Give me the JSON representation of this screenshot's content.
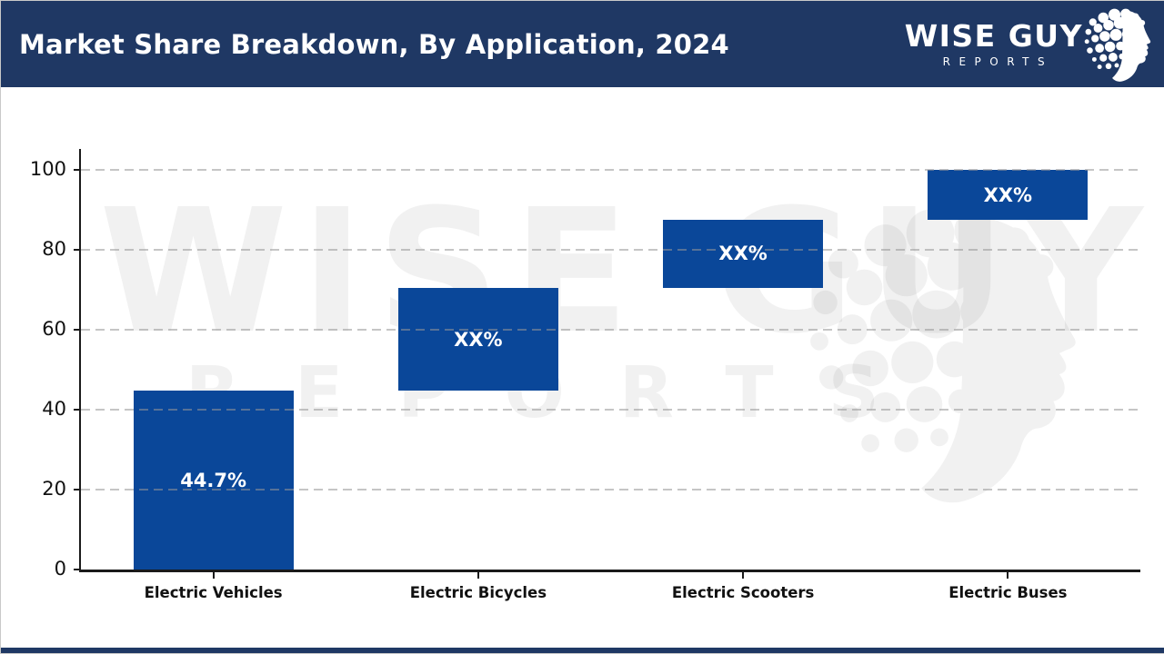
{
  "header": {
    "title": "Market Share Breakdown, By Application, 2024",
    "logo": {
      "line1": "WISE GUY",
      "line2": "REPORTS"
    }
  },
  "watermark": {
    "line1": "WISE GUY",
    "line2": "REPORTS"
  },
  "colors": {
    "header_bg": "#1f3864",
    "footer_bg": "#1f3864",
    "bar": "#0a4799",
    "bar_label": "#ffffff",
    "axis": "#1a1a1a",
    "gridline": "#b4b4b4",
    "title_text": "#ffffff"
  },
  "chart_data": {
    "type": "bar",
    "subtype": "waterfall",
    "title": "Market Share Breakdown, By Application, 2024",
    "categories": [
      "Electric Vehicles",
      "Electric Bicycles",
      "Electric Scooters",
      "Electric Buses"
    ],
    "values": [
      44.7,
      25.8,
      17.0,
      12.5
    ],
    "cumulative_end": [
      44.7,
      70.5,
      87.5,
      100
    ],
    "labels": [
      "44.7%",
      "XX%",
      "XX%",
      "XX%"
    ],
    "yticks": [
      0,
      20,
      40,
      60,
      80,
      100
    ],
    "ylim": [
      0,
      105
    ],
    "xlabel": "",
    "ylabel": "",
    "grid": "dashed-horizontal",
    "legend": "none"
  }
}
